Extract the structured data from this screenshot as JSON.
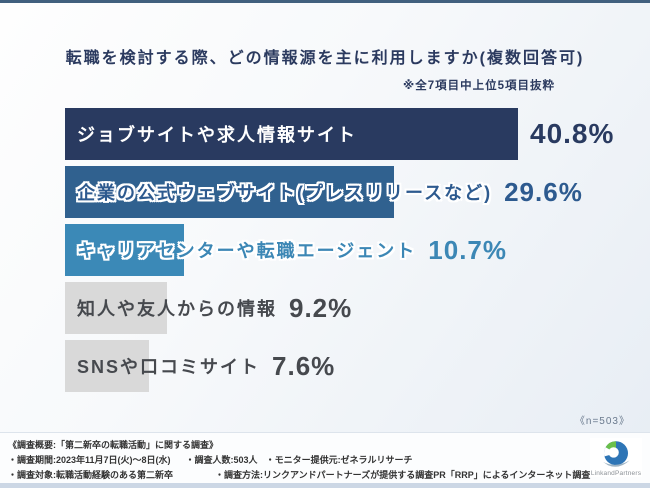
{
  "page": {
    "title": "転職を検討する際、どの情報源を主に利用しますか(複数回答可)",
    "subtitle_note": "※全7項目中上位5項目抜粋",
    "sample_note": "《n=503》"
  },
  "chart_data": {
    "type": "bar",
    "orientation": "horizontal",
    "title": "転職を検討する際、どの情報源を主に利用しますか(複数回答可)",
    "note": "※全7項目中上位5項目抜粋",
    "n": 503,
    "xlim": [
      0,
      45
    ],
    "grid": false,
    "legend": "none",
    "categories": [
      "ジョブサイトや求人情報サイト",
      "企業の公式ウェブサイト(プレスリリースなど)",
      "キャリアセンターや転職エージェント",
      "知人や友人からの情報",
      "SNSや口コミサイト"
    ],
    "values": [
      40.8,
      29.6,
      10.7,
      9.2,
      7.6
    ],
    "bars": [
      {
        "label": "ジョブサイトや求人情報サイト",
        "value": 40.8,
        "value_label": "40.8%",
        "bar_color": "#293a60",
        "label_mode": "white-inside",
        "label_color": "#ffffff",
        "value_color": "#293a60"
      },
      {
        "label": "企業の公式ウェブサイト(プレスリリースなど)",
        "value": 29.6,
        "value_label": "29.6%",
        "bar_color": "#30618f",
        "label_mode": "outline-overflow",
        "label_color": "#2d5a8f",
        "value_color": "#2d5a8f"
      },
      {
        "label": "キャリアセンターや転職エージェント",
        "value": 10.7,
        "value_label": "10.7%",
        "bar_color": "#3b89b7",
        "label_mode": "outline-overflow",
        "label_color": "#3c87b5",
        "value_color": "#3c87b5"
      },
      {
        "label": "知人や友人からの情報",
        "value": 9.2,
        "value_label": "9.2%",
        "bar_color": "#d9d9d9",
        "label_mode": "dark",
        "label_color": "#46494e",
        "value_color": "#46494e"
      },
      {
        "label": "SNSや口コミサイト",
        "value": 7.6,
        "value_label": "7.6%",
        "bar_color": "#d9d9d9",
        "label_mode": "dark",
        "label_color": "#46494e",
        "value_color": "#46494e"
      }
    ]
  },
  "footer": {
    "line1": "《調査概要:「第二新卒の転職活動」に関する調査》",
    "line2": [
      "・調査期間:2023年11月7日(火)〜8日(水)",
      "・調査人数:503人",
      "・モニター提供元:ゼネラルリサーチ"
    ],
    "line3": [
      "・調査対象:転職活動経験のある第二新卒",
      "・調査方法:リンクアンドパートナーズが提供する調査PR「RRP」によるインターネット調査"
    ]
  },
  "logo": {
    "label": "LinkandPartners"
  },
  "colors": {
    "accent_navy": "#2b3a5f",
    "bar_dark_navy": "#293a60",
    "bar_medium_blue": "#30618f",
    "bar_steel_blue": "#3b89b7",
    "bar_gray": "#d9d9d9",
    "top_strip": "#41607e",
    "bottom_strip": "#ccd7e5"
  }
}
